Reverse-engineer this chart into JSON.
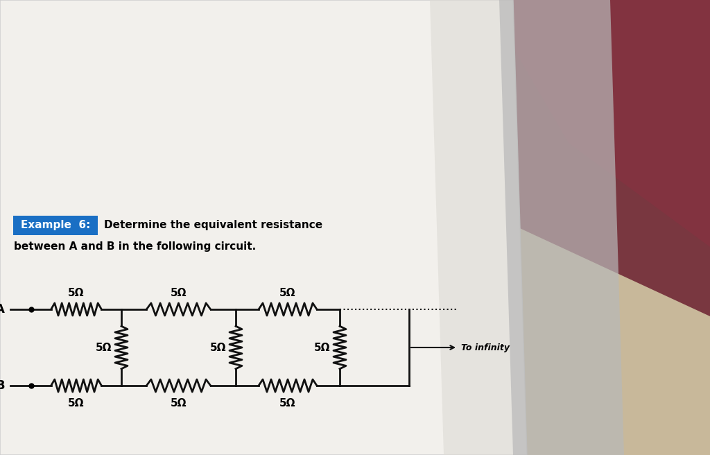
{
  "title_example": "Example  6:",
  "title_example_bg": "#1a6fc4",
  "title_text": "Determine the equivalent resistance",
  "title_text2": "between A and B in the following circuit.",
  "resistor_label": "5Ω",
  "line_color": "#111111",
  "figsize": [
    10.24,
    6.56
  ],
  "dpi": 100,
  "bg_top_color": "#c8b89a",
  "bg_fabric_color": "#6b2030",
  "page_color": "#f2f0ec",
  "page_shadow": "#d0cec8"
}
